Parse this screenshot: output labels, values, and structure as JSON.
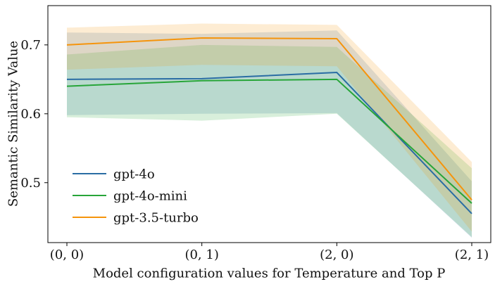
{
  "figure": {
    "background": "#ffffff",
    "frame_color": "#000000"
  },
  "chart_data": {
    "type": "line",
    "title": "",
    "xlabel": "Model configuration values for Temperature and Top P",
    "ylabel": "Semantic Similarity Value",
    "categories": [
      "(0, 0)",
      "(0, 1)",
      "(2, 0)",
      "(2, 1)"
    ],
    "ylim": [
      0.413,
      0.757
    ],
    "yticks": [
      0.5,
      0.6,
      0.7
    ],
    "grid": false,
    "legend_position": "lower left",
    "band_opacity": 0.18,
    "series": [
      {
        "name": "gpt-4o",
        "color": "#2a6da4",
        "values": [
          0.65,
          0.651,
          0.66,
          0.455
        ],
        "band_upper": [
          0.718,
          0.716,
          0.721,
          0.502
        ],
        "band_lower": [
          0.598,
          0.6,
          0.601,
          0.42
        ]
      },
      {
        "name": "gpt-4o-mini",
        "color": "#27a539",
        "values": [
          0.64,
          0.648,
          0.65,
          0.47
        ],
        "band_upper": [
          0.686,
          0.7,
          0.697,
          0.521
        ],
        "band_lower": [
          0.595,
          0.59,
          0.6,
          0.421
        ]
      },
      {
        "name": "gpt-3.5-turbo",
        "color": "#f5940c",
        "values": [
          0.7,
          0.71,
          0.709,
          0.475
        ],
        "band_upper": [
          0.725,
          0.731,
          0.729,
          0.53
        ],
        "band_lower": [
          0.664,
          0.671,
          0.669,
          0.429
        ]
      }
    ]
  }
}
